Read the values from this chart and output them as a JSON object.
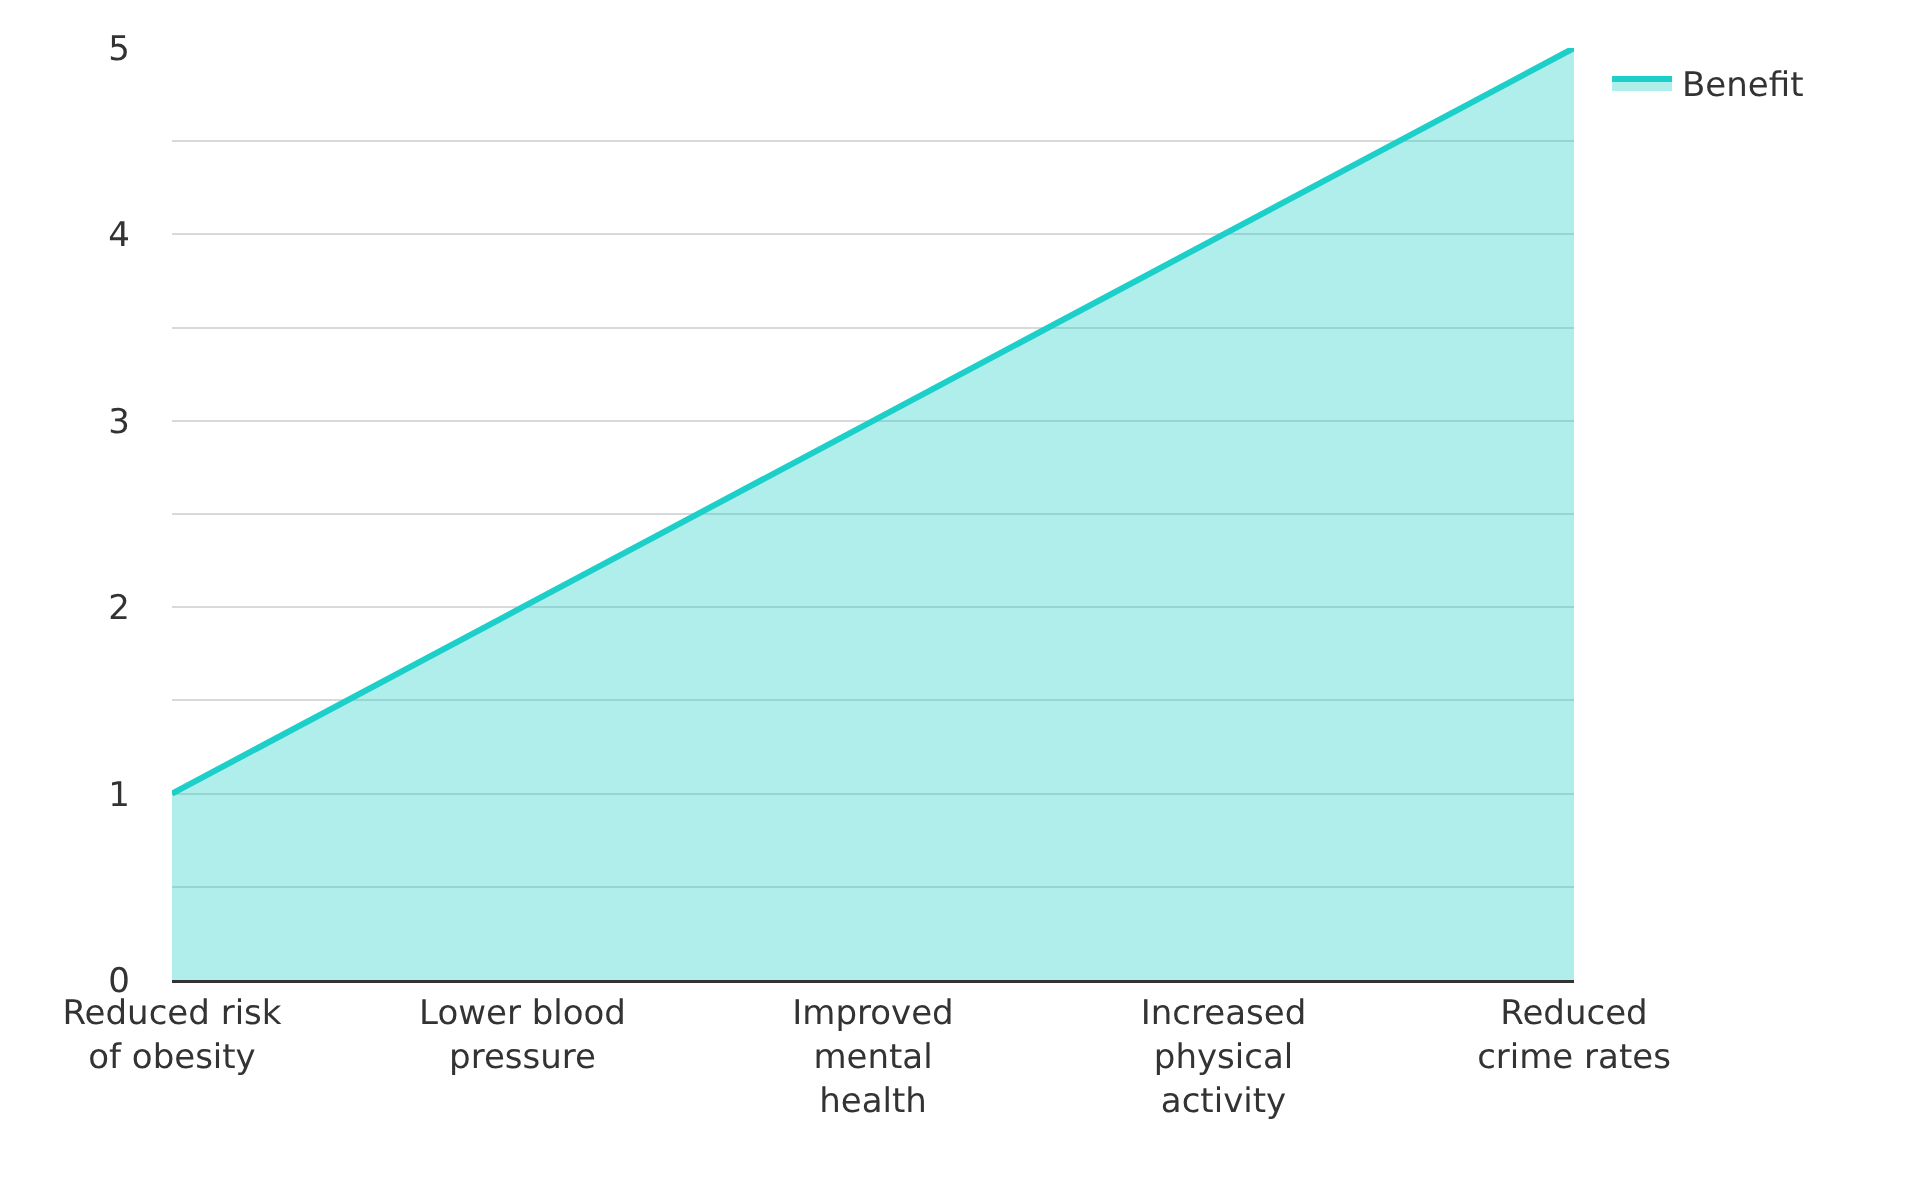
{
  "chart_data": {
    "type": "area",
    "categories": [
      "Reduced risk of obesity",
      "Lower blood pressure",
      "Improved mental health",
      "Increased physical activity",
      "Reduced crime rates"
    ],
    "series": [
      {
        "name": "Benefit",
        "color": "#1ccfc9",
        "values": [
          1,
          2,
          3,
          4,
          5
        ]
      }
    ],
    "ylim": [
      0,
      5
    ],
    "yticks": [
      0,
      {
        "value": 0.5,
        "label": null
      },
      1,
      {
        "value": 1.5,
        "label": null
      },
      2,
      {
        "value": 2.5,
        "label": null
      },
      3,
      {
        "value": 3.5,
        "label": null
      },
      4,
      {
        "value": 4.5,
        "label": null
      },
      5
    ],
    "grid": "y",
    "legend": "top right",
    "marker": "none",
    "line_style": "solid"
  }
}
